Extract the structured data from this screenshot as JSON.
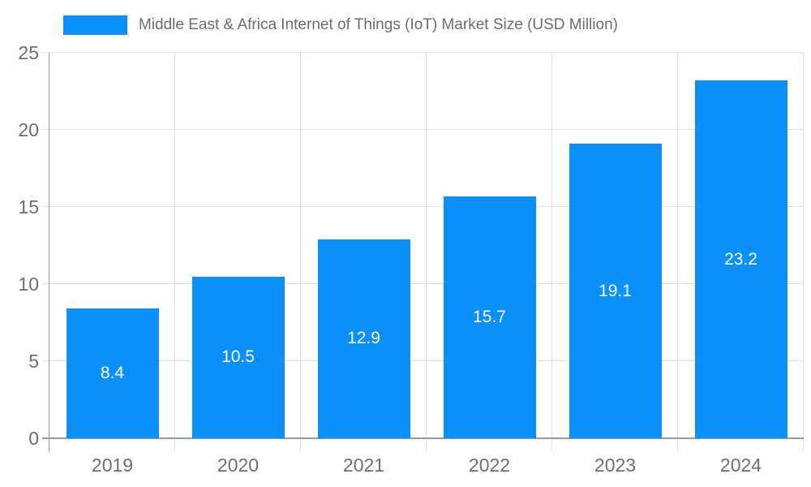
{
  "chart_data": {
    "type": "bar",
    "title": "Middle East & Africa Internet of Things (IoT) Market Size (USD Million)",
    "categories": [
      "2019",
      "2020",
      "2021",
      "2022",
      "2023",
      "2024"
    ],
    "values": [
      8.4,
      10.5,
      12.9,
      15.7,
      19.1,
      23.2
    ],
    "value_labels": [
      "8.4",
      "10.5",
      "12.9",
      "15.7",
      "19.1",
      "23.2"
    ],
    "xlabel": "",
    "ylabel": "",
    "ylim": [
      0,
      25
    ],
    "yticks": [
      0,
      5,
      10,
      15,
      20,
      25
    ],
    "grid": true,
    "legend_position": "top",
    "colors": {
      "bar": "#0a90f8",
      "value_label": "#ffffff",
      "grid": "#e2e2e2",
      "axis": "#9a9a9a",
      "tick_label": "#6f6f6f",
      "legend_text": "#6d6d6d",
      "background": "#ffffff"
    }
  }
}
